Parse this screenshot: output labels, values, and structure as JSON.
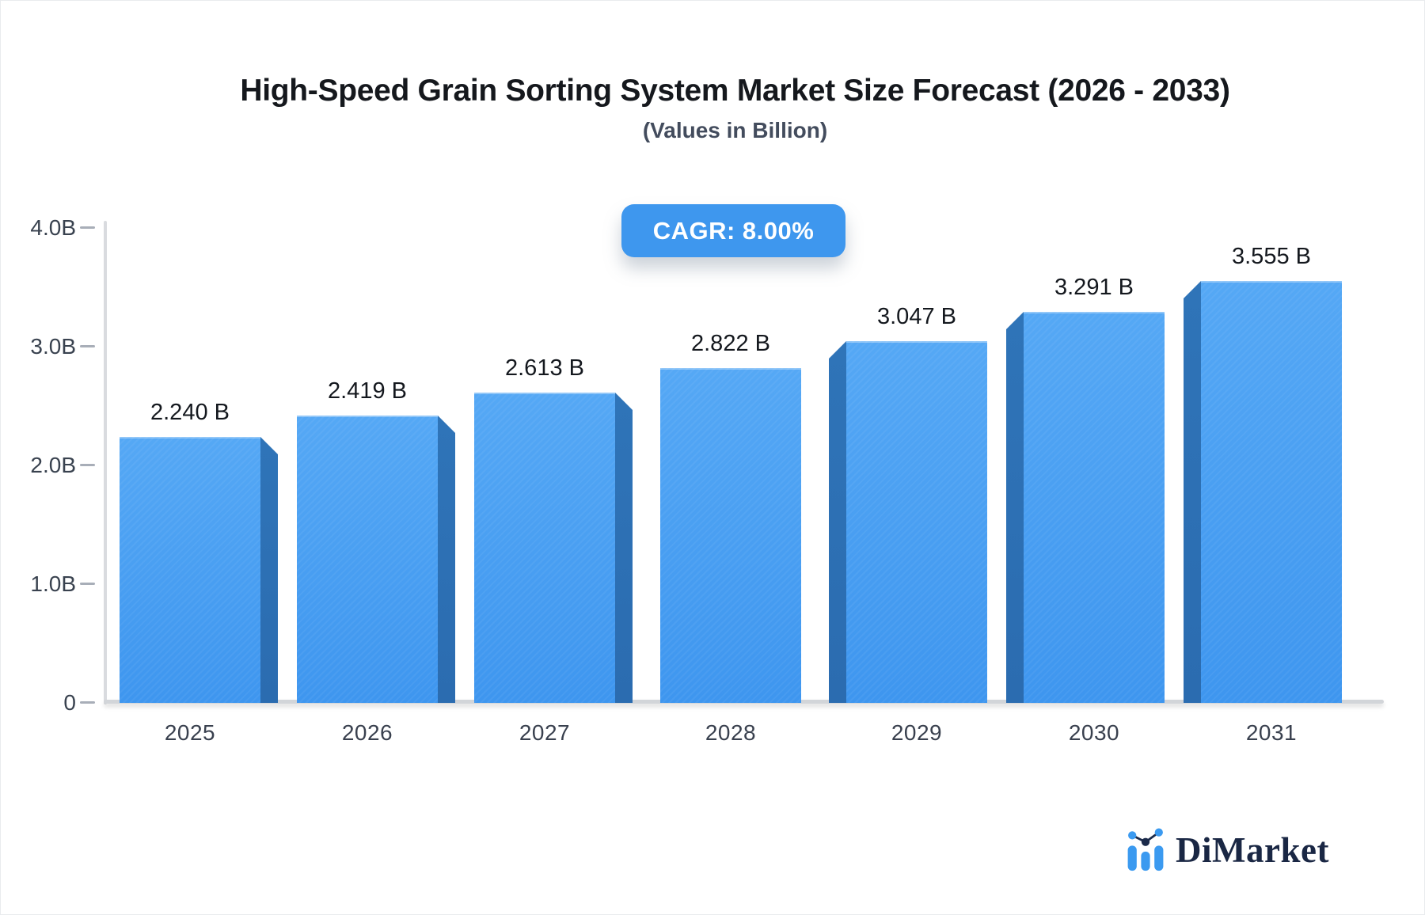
{
  "header": {
    "title": "High-Speed Grain Sorting System Market Size Forecast (2026 - 2033)",
    "subtitle": "(Values in Billion)"
  },
  "badge": {
    "label": "CAGR: 8.00%",
    "bg_color": "#3e97ee",
    "text_color": "#ffffff"
  },
  "chart_data": {
    "type": "bar",
    "title": "High-Speed Grain Sorting System Market Size Forecast (2026 - 2033)",
    "subtitle": "(Values in Billion)",
    "categories": [
      "2025",
      "2026",
      "2027",
      "2028",
      "2029",
      "2030",
      "2031"
    ],
    "values": [
      2.24,
      2.419,
      2.613,
      2.822,
      3.047,
      3.291,
      3.555
    ],
    "value_labels": [
      "2.240 B",
      "2.419 B",
      "2.613 B",
      "2.822 B",
      "3.047 B",
      "3.291 B",
      "3.555 B"
    ],
    "y_ticks": [
      {
        "label": "4.0B",
        "value": 4.0
      },
      {
        "label": "3.0B",
        "value": 3.0
      },
      {
        "label": "2.0B",
        "value": 2.0
      },
      {
        "label": "1.0B",
        "value": 1.0
      },
      {
        "label": "0",
        "value": 0
      }
    ],
    "ylim": [
      0,
      4.0
    ],
    "xlabel": "",
    "ylabel": "",
    "grid": false,
    "legend": false,
    "colors": {
      "bar_face_top": "#55a8f5",
      "bar_face_bottom": "#3e96ef",
      "bar_side_top": "#2f74b8",
      "bar_side_bottom": "#2b6cb0",
      "axis_line": "#d9dbdf",
      "baseline": "#d2d5d9",
      "tick_dash": "#a8aeb8",
      "tick_text": "#39424f",
      "value_text": "#14181e"
    }
  },
  "footer": {
    "brand": "DiMarket",
    "logo_icon": "bar-chart-trend-icon",
    "logo_bar_color": "#3b9af0",
    "logo_line_color": "#1b2a4a"
  }
}
